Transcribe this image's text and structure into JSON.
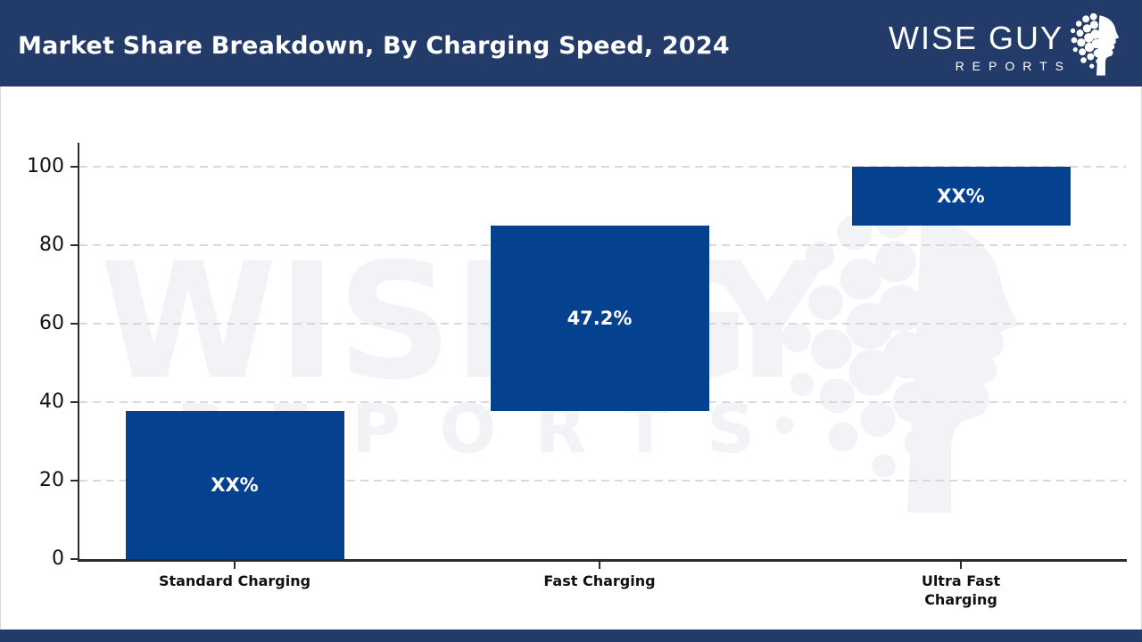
{
  "header": {
    "title": "Market Share Breakdown, By Charging Speed, 2024",
    "brand": {
      "line1": "WISE GUY",
      "line2": "REPORTS"
    }
  },
  "watermark": {
    "big_left": "WISE G",
    "big_right": "Y",
    "small": "REPORTS"
  },
  "footer": {
    "visible": true
  },
  "colors": {
    "navy": "#223B69",
    "bar_blue": "#04418F",
    "bar_label": "#FFFFFF",
    "watermark_gray": "#F2F3F6",
    "gridline": "#D9D9D9",
    "axis": "#2B2B2B",
    "tick_text": "#111111"
  },
  "chart_data": {
    "type": "bar",
    "variant": "waterfall",
    "title": "Market Share Breakdown, By Charging Speed, 2024",
    "categories": [
      "Standard Charging",
      "Fast Charging",
      "Ultra Fast Charging"
    ],
    "category_lines": [
      [
        "Standard Charging"
      ],
      [
        "Fast Charging"
      ],
      [
        "Ultra Fast",
        "Charging"
      ]
    ],
    "segments": [
      {
        "category": "Standard Charging",
        "start": 0,
        "end": 37.8,
        "label": "XX%"
      },
      {
        "category": "Fast Charging",
        "start": 37.8,
        "end": 85,
        "label": "47.2%"
      },
      {
        "category": "Ultra Fast Charging",
        "start": 85,
        "end": 100,
        "label": "XX%"
      }
    ],
    "yticks": [
      0,
      20,
      40,
      60,
      80,
      100
    ],
    "ylim": [
      0,
      106
    ],
    "xlabel": "",
    "ylabel": "",
    "grid": "horizontal-dashed",
    "legend": "none",
    "bar_color": "#04418F"
  }
}
